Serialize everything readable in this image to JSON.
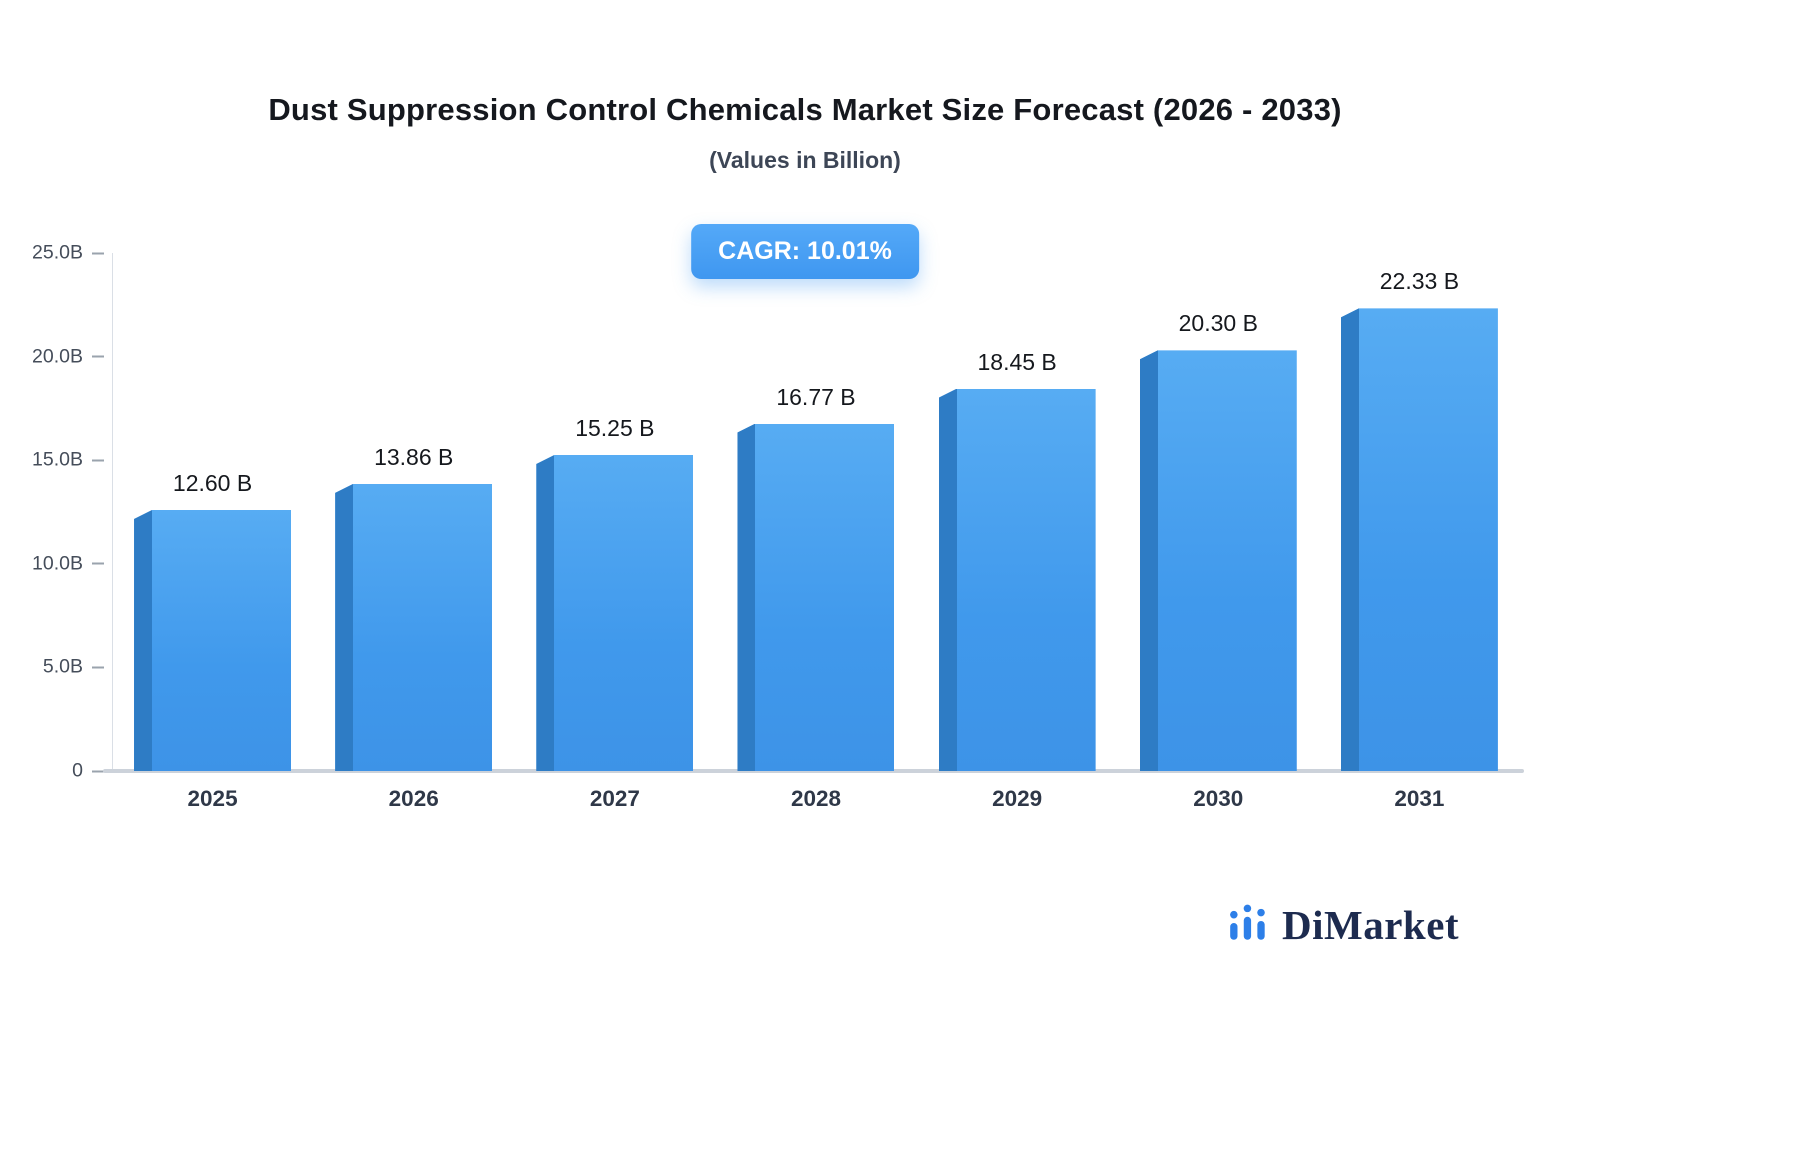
{
  "header": {
    "title": "Dust Suppression Control Chemicals Market Size Forecast (2026 - 2033)",
    "subtitle": "(Values in Billion)",
    "badge": "CAGR: 10.01%"
  },
  "brand": {
    "name": "DiMarket"
  },
  "chart_data": {
    "type": "bar",
    "title": "Dust Suppression Control Chemicals Market Size Forecast (2026 - 2033)",
    "subtitle": "(Values in Billion)",
    "badge": "CAGR: 10.01%",
    "categories": [
      "2025",
      "2026",
      "2027",
      "2028",
      "2029",
      "2030",
      "2031"
    ],
    "values": [
      12.6,
      13.86,
      15.25,
      16.77,
      18.45,
      20.3,
      22.33
    ],
    "value_labels": [
      "12.60 B",
      "13.86 B",
      "15.25 B",
      "16.77 B",
      "18.45 B",
      "20.30 B",
      "22.33 B"
    ],
    "xlabel": "",
    "ylabel": "",
    "ylim": [
      0,
      25
    ],
    "yticks": [
      {
        "value": 25,
        "label": "25.0B"
      },
      {
        "value": 20,
        "label": "20.0B"
      },
      {
        "value": 15,
        "label": "15.0B"
      },
      {
        "value": 10,
        "label": "10.0B"
      },
      {
        "value": 5,
        "label": "5.0B"
      },
      {
        "value": 0,
        "label": "0"
      }
    ],
    "grid": false,
    "legend": false,
    "bar_color": "#4099EC",
    "bar_side_color": "#2E7CC5",
    "badge_color": "#3F97F0"
  }
}
